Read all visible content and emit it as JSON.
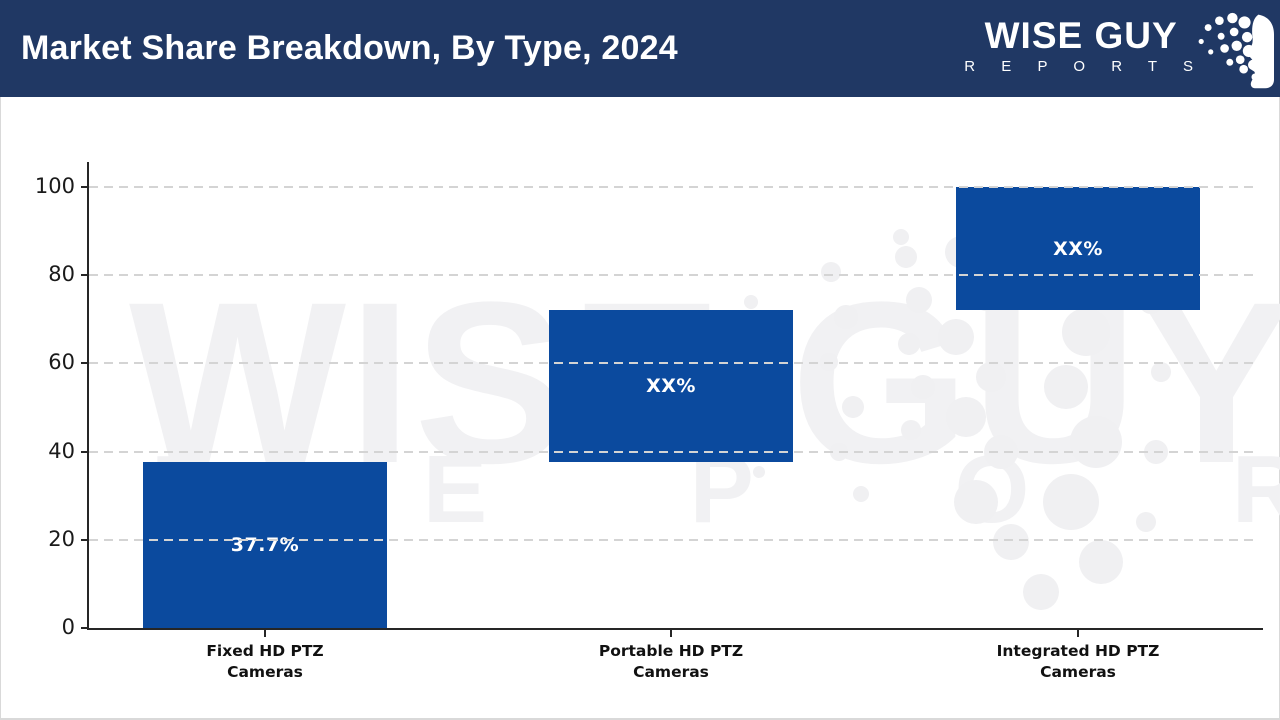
{
  "header": {
    "title": "Market Share Breakdown, By Type, 2024",
    "logo": {
      "line1": "WISE GUY",
      "line2": "R E P O R T S"
    }
  },
  "watermark": {
    "line1": "WISE GUY",
    "line2": "R E P O R T S"
  },
  "colors": {
    "header_bg": "#203864",
    "bar": "#0b4a9e",
    "axis": "#262626",
    "grid": "#d4d4d4",
    "watermark": "#f1f1f3",
    "bar_label_text": "#ffffff"
  },
  "chart_data": {
    "type": "bar",
    "subtype": "waterfall-floating-bars",
    "title": "Market Share Breakdown, By Type, 2024",
    "categories": [
      "Fixed HD PTZ Cameras",
      "Portable HD PTZ Cameras",
      "Integrated HD PTZ Cameras"
    ],
    "category_label_lines": [
      [
        "Fixed HD PTZ",
        "Cameras"
      ],
      [
        "Portable HD PTZ",
        "Cameras"
      ],
      [
        "Integrated HD PTZ",
        "Cameras"
      ]
    ],
    "segments": [
      {
        "start": 0,
        "end": 37.7,
        "label": "37.7%"
      },
      {
        "start": 37.7,
        "end": 72,
        "label": "XX%"
      },
      {
        "start": 72,
        "end": 100,
        "label": "XX%"
      }
    ],
    "xlabel": "",
    "ylabel": "",
    "ylim": [
      0,
      100
    ],
    "yticks": [
      0,
      20,
      40,
      60,
      80,
      100
    ],
    "grid": "horizontal dashed, drawn above bars",
    "legend": "none"
  }
}
